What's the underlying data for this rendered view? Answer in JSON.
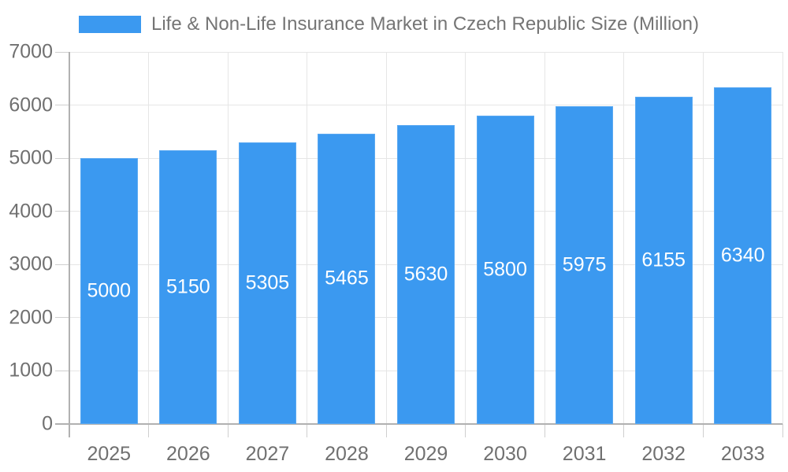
{
  "chart_data": {
    "type": "bar",
    "title": "Life & Non-Life Insurance Market in Czech Republic Size (Million)",
    "categories": [
      "2025",
      "2026",
      "2027",
      "2028",
      "2029",
      "2030",
      "2031",
      "2032",
      "2033"
    ],
    "series": [
      {
        "name": "Life & Non-Life Insurance Market in Czech Republic Size (Million)",
        "values": [
          5000,
          5150,
          5305,
          5465,
          5630,
          5800,
          5975,
          6155,
          6340
        ]
      }
    ],
    "bar_labels": [
      "5000",
      "5150",
      "5305",
      "5465",
      "5630",
      "5800",
      "5975",
      "6155",
      "6340"
    ],
    "xlabel": "",
    "ylabel": "",
    "ylim": [
      0,
      7000
    ],
    "yticks": [
      0,
      1000,
      2000,
      3000,
      4000,
      5000,
      6000,
      7000
    ],
    "grid": true,
    "legend_position": "top",
    "colors": {
      "bar": "#3b99f0",
      "bar_edge": "#5aa9f2",
      "bar_label_text": "#ffffff",
      "axis_text": "#707070",
      "legend_text": "#757575",
      "gridline": "#e6e6e6",
      "axis_line": "#b1b1b1",
      "tick": "#cfcfcf",
      "background": "#ffffff"
    }
  }
}
